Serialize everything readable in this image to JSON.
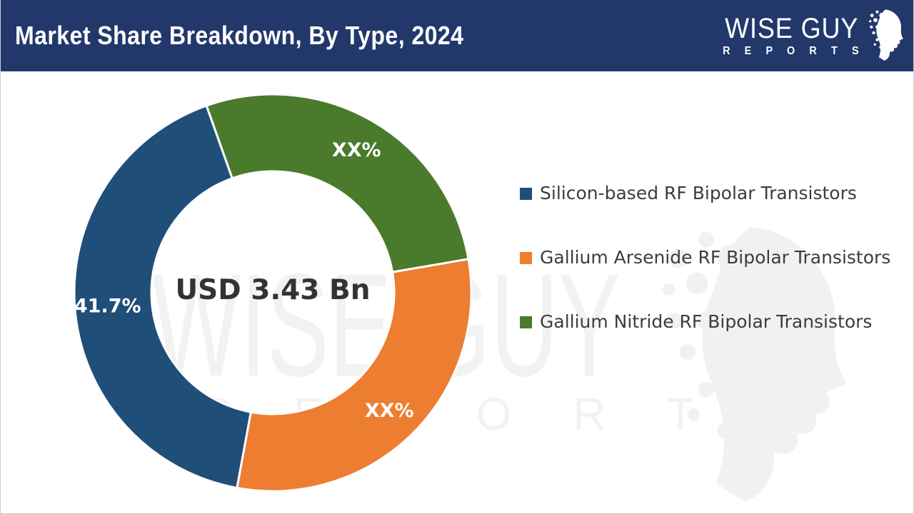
{
  "header": {
    "title": "Market Share Breakdown, By Type, 2024",
    "logo": {
      "name": "WISE GUY",
      "subtitle": "R E P O R T S"
    }
  },
  "colors": {
    "header_bg": "#22386B",
    "page_bg": "#FFFFFF",
    "border": "#C9CACC",
    "center_text": "#333333",
    "legend_text": "#3C3C3C",
    "slice_label_text": "#FFFFFF",
    "watermark": "#F2F2F3"
  },
  "chart_data": {
    "type": "pie",
    "subtype": "donut",
    "title": "Market Share Breakdown, By Type, 2024",
    "center_label": "USD 3.43 Bn",
    "start_angle_deg": 109.5,
    "direction": "counterclockwise",
    "inner_radius_ratio": 0.61,
    "legend_position": "right",
    "grid": false,
    "segments": [
      {
        "label": "Silicon-based RF Bipolar Transistors",
        "value_pct": 41.7,
        "display_label": "41.7%",
        "color": "#1F4E79"
      },
      {
        "label": "Gallium Arsenide RF Bipolar Transistors",
        "value_pct": 30.6,
        "display_label": "XX%",
        "color": "#ED7D31"
      },
      {
        "label": "Gallium Nitride RF Bipolar Transistors",
        "value_pct": 27.7,
        "display_label": "XX%",
        "color": "#4A7A2B"
      }
    ]
  },
  "watermark": {
    "line1": "WISE GUY",
    "line2": "R E P O R T S"
  }
}
